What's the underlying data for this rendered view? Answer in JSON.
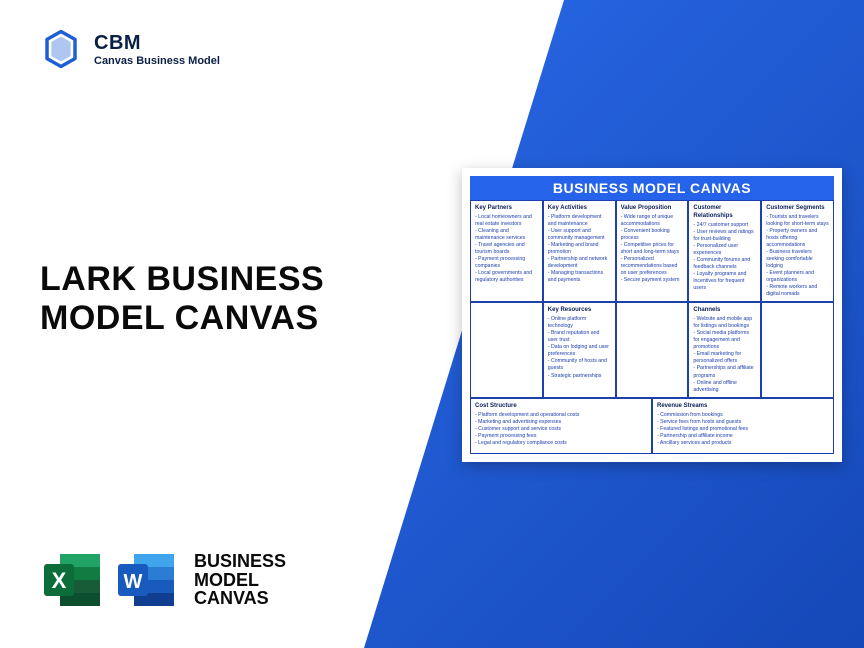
{
  "logo": {
    "title": "CBM",
    "subtitle": "Canvas Business Model"
  },
  "main_title_line1": "LARK BUSINESS",
  "main_title_line2": "MODEL CANVAS",
  "apps_label_line1": "BUSINESS",
  "apps_label_line2": "MODEL",
  "apps_label_line3": "CANVAS",
  "colors": {
    "brand_blue": "#2563eb",
    "dark_text": "#0a1f44",
    "bg_gradient_start": "#2968e6",
    "bg_gradient_end": "#1548b8"
  },
  "canvas": {
    "header": "BUSINESS MODEL CANVAS",
    "cells": {
      "key_partners": {
        "title": "Key Partners",
        "items": [
          "Local homeowners and real estate investors",
          "Cleaning and maintenance services",
          "Travel agencies and tourism boards",
          "Payment processing companies",
          "Local governments and regulatory authorities"
        ]
      },
      "key_activities": {
        "title": "Key Activities",
        "items": [
          "Platform development and maintenance",
          "User support and community management",
          "Marketing and brand promotion",
          "Partnership and network development",
          "Managing transactions and payments"
        ]
      },
      "value_proposition": {
        "title": "Value Proposition",
        "items": [
          "Wide range of unique accommodations",
          "Convenient booking process",
          "Competitive prices for short and long-term stays",
          "Personalized recommendations based on user preferences",
          "Secure payment system"
        ]
      },
      "customer_relationships": {
        "title": "Customer Relationships",
        "items": [
          "24/7 customer support",
          "User reviews and ratings for trust-building",
          "Personalized user experiences",
          "Community forums and feedback channels",
          "Loyalty programs and incentives for frequent users"
        ]
      },
      "customer_segments": {
        "title": "Customer Segments",
        "items": [
          "Tourists and travelers looking for short-term stays",
          "Property owners and hosts offering accommodations",
          "Business travelers seeking comfortable lodging",
          "Event planners and organizations",
          "Remote workers and digital nomads"
        ]
      },
      "key_resources": {
        "title": "Key Resources",
        "items": [
          "Online platform technology",
          "Brand reputation and user trust",
          "Data on lodging and user preferences",
          "Community of hosts and guests",
          "Strategic partnerships"
        ]
      },
      "channels": {
        "title": "Channels",
        "items": [
          "Website and mobile app for listings and bookings",
          "Social media platforms for engagement and promotions",
          "Email marketing for personalized offers",
          "Partnerships and affiliate programs",
          "Online and offline advertising"
        ]
      },
      "cost_structure": {
        "title": "Cost Structure",
        "items": [
          "Platform development and operational costs",
          "Marketing and advertising expenses",
          "Customer support and service costs",
          "Payment processing fees",
          "Legal and regulatory compliance costs"
        ]
      },
      "revenue_streams": {
        "title": "Revenue Streams",
        "items": [
          "Commission from bookings",
          "Service fees from hosts and guests",
          "Featured listings and promotional fees",
          "Partnership and affiliate income",
          "Ancillary services and products"
        ]
      }
    }
  }
}
